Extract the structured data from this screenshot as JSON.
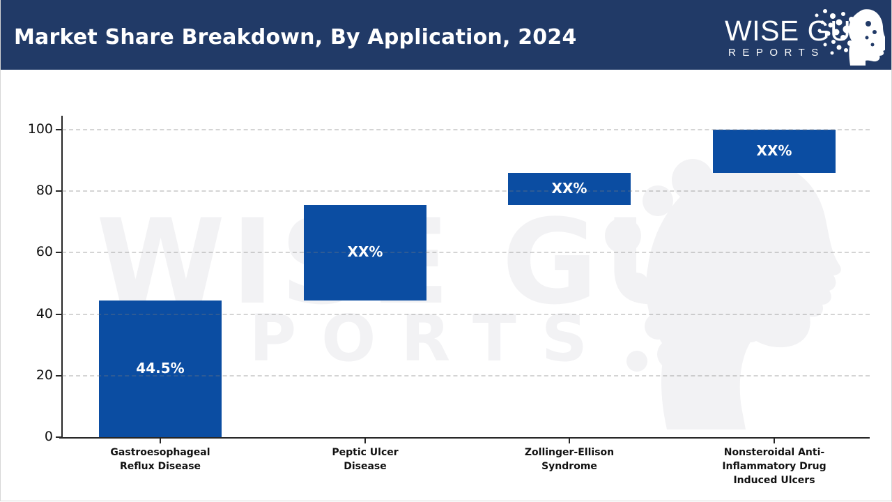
{
  "header": {
    "title": "Market Share Breakdown, By Application, 2024",
    "logo": {
      "line1": "WISE GUY",
      "line2": "REPORTS"
    }
  },
  "watermark": {
    "line1": "WISE GUY",
    "line2": "REPORTS"
  },
  "chart_data": {
    "type": "bar",
    "subtype": "waterfall",
    "title": "Market Share Breakdown, By Application, 2024",
    "unit": "%",
    "categories": [
      [
        "Gastroesophageal",
        "Reflux Disease"
      ],
      [
        "Peptic Ulcer",
        "Disease"
      ],
      [
        "Zollinger-Ellison",
        "Syndrome"
      ],
      [
        "Nonsteroidal Anti-",
        "Inflammatory Drug",
        "Induced Ulcers"
      ]
    ],
    "segments": [
      {
        "start": 0,
        "end": 44.5,
        "label": "44.5%"
      },
      {
        "start": 44.5,
        "end": 75.5,
        "label": "XX%"
      },
      {
        "start": 75.5,
        "end": 86,
        "label": "XX%"
      },
      {
        "start": 86,
        "end": 100,
        "label": "XX%"
      }
    ],
    "ylim": [
      0,
      100
    ],
    "yticks": [
      0,
      20,
      40,
      60,
      80,
      100
    ],
    "xlabel": "",
    "ylabel": "",
    "bar_color": "#0b4da2",
    "header_color": "#213a67",
    "grid": "horizontal-dashed",
    "legend": "none"
  }
}
